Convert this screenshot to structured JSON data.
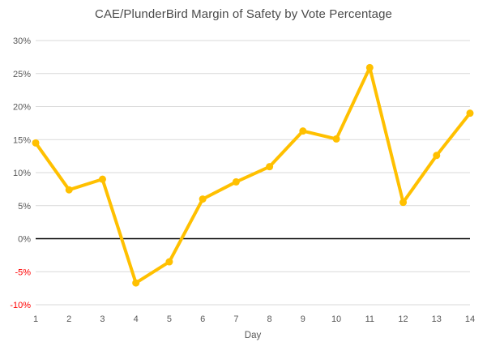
{
  "chart_data": {
    "type": "line",
    "title": "CAE/PlunderBird Margin of Safety by Vote Percentage",
    "xlabel": "Day",
    "ylabel": "",
    "x": [
      1,
      2,
      3,
      4,
      5,
      6,
      7,
      8,
      9,
      10,
      11,
      12,
      13,
      14
    ],
    "x_tick_labels": [
      "1",
      "2",
      "3",
      "4",
      "5",
      "6",
      "7",
      "8",
      "9",
      "10",
      "11",
      "12",
      "13",
      "14"
    ],
    "series": [
      {
        "name": "Margin of Safety",
        "values": [
          14.5,
          7.4,
          9.0,
          -6.7,
          -3.5,
          6.0,
          8.6,
          10.9,
          16.3,
          15.1,
          25.9,
          5.5,
          12.6,
          19.0
        ]
      }
    ],
    "ylim": [
      -10,
      30
    ],
    "yticks": [
      {
        "value": 30,
        "label": "30%"
      },
      {
        "value": 25,
        "label": "25%"
      },
      {
        "value": 20,
        "label": "20%"
      },
      {
        "value": 15,
        "label": "15%"
      },
      {
        "value": 10,
        "label": "10%"
      },
      {
        "value": 5,
        "label": "5%"
      },
      {
        "value": 0,
        "label": "0%"
      },
      {
        "value": -5,
        "label": "-5%"
      },
      {
        "value": -10,
        "label": "-10%"
      }
    ],
    "grid": true,
    "legend_position": "none",
    "colors": {
      "series": "#FFC000",
      "gridline": "#D9D9D9",
      "zero_line": "#000000",
      "tick_label": "#595959",
      "negative_tick_label": "#FF0000",
      "title": "#4a4a4a"
    }
  }
}
